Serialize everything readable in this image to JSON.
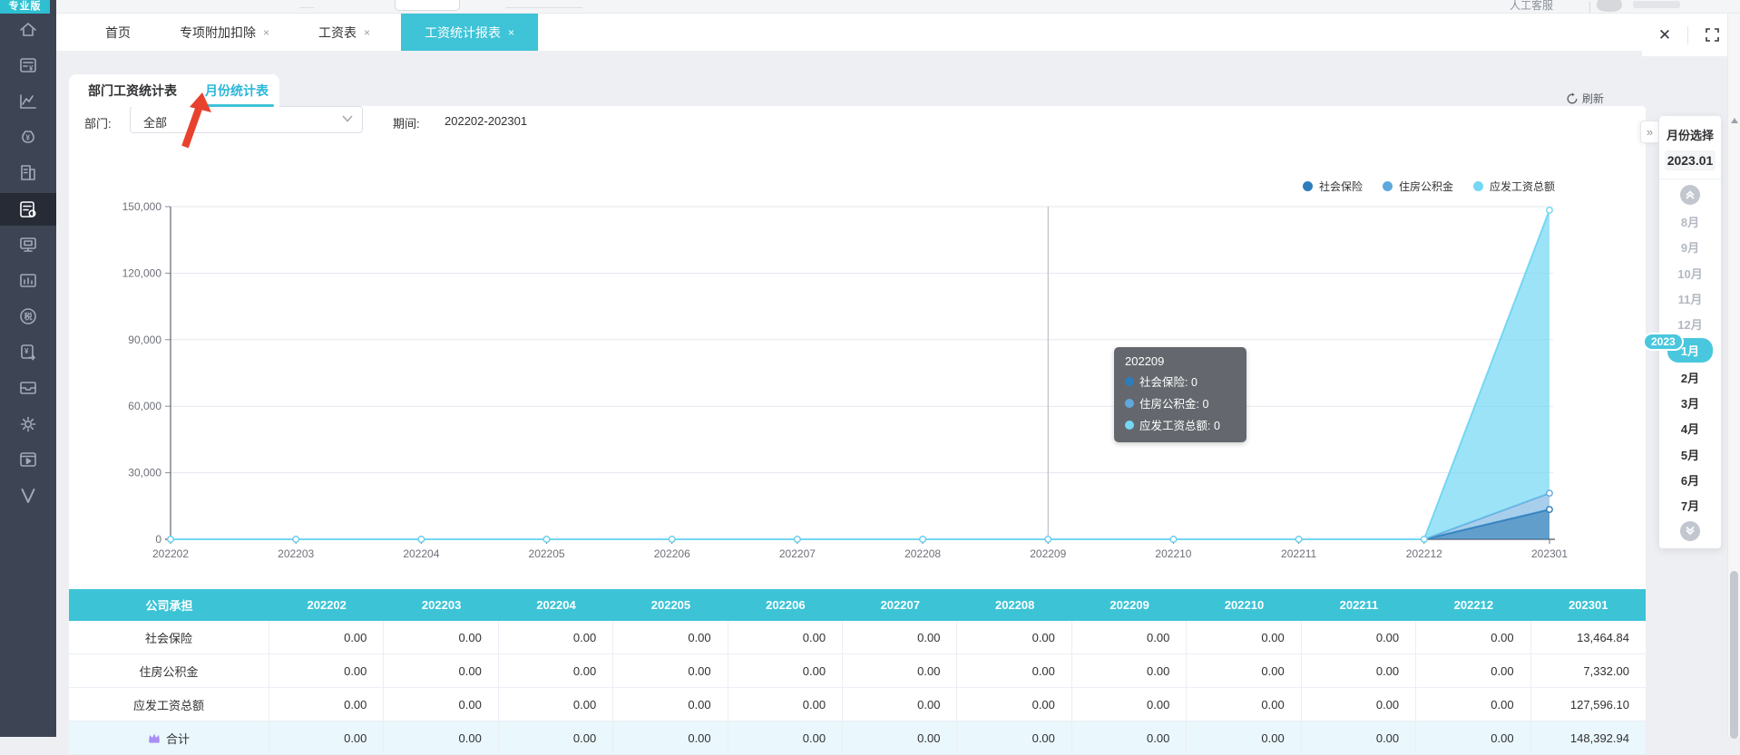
{
  "topbar": {
    "assistant_label": "人工客服"
  },
  "sidebar": {
    "edition_badge": "专业版",
    "items": [
      {
        "name": "home",
        "active": false
      },
      {
        "name": "voucher",
        "active": false
      },
      {
        "name": "reports",
        "active": false
      },
      {
        "name": "funds",
        "active": false
      },
      {
        "name": "invoices",
        "active": false
      },
      {
        "name": "salary-reports",
        "active": true
      },
      {
        "name": "cashier",
        "active": false
      },
      {
        "name": "assets",
        "active": false
      },
      {
        "name": "tax",
        "active": false
      },
      {
        "name": "checkout",
        "active": false
      },
      {
        "name": "archive",
        "active": false
      },
      {
        "name": "settings",
        "active": false
      },
      {
        "name": "tutorial-video",
        "active": false
      },
      {
        "name": "v-logo",
        "active": false
      }
    ]
  },
  "tabs": [
    {
      "label": "首页",
      "closable": false,
      "active": false
    },
    {
      "label": "专项附加扣除",
      "closable": true,
      "active": false
    },
    {
      "label": "工资表",
      "closable": true,
      "active": false
    },
    {
      "label": "工资统计报表",
      "closable": true,
      "active": true
    }
  ],
  "icons": {
    "close": "✕",
    "collapse": "»",
    "tab_close": "×"
  },
  "subtabs": [
    {
      "label": "部门工资统计表",
      "active": false
    },
    {
      "label": "月份统计表",
      "active": true
    }
  ],
  "toolbar": {
    "refresh_label": "刷新"
  },
  "filters": {
    "department_label": "部门:",
    "department_value": "全部",
    "period_label": "期间:",
    "period_value": "202202-202301"
  },
  "chart_data": {
    "type": "area",
    "stacked": true,
    "x": [
      "202202",
      "202203",
      "202204",
      "202205",
      "202206",
      "202207",
      "202208",
      "202209",
      "202210",
      "202211",
      "202212",
      "202301"
    ],
    "series": [
      {
        "name": "社会保险",
        "color": "#2d7dbb",
        "fill_opacity": 0.75,
        "values": [
          0,
          0,
          0,
          0,
          0,
          0,
          0,
          0,
          0,
          0,
          0,
          13464.84
        ]
      },
      {
        "name": "住房公积金",
        "color": "#5fa8dc",
        "fill_opacity": 0.55,
        "values": [
          0,
          0,
          0,
          0,
          0,
          0,
          0,
          0,
          0,
          0,
          0,
          7332.0
        ]
      },
      {
        "name": "应发工资总额",
        "color": "#74d7f3",
        "fill_opacity": 0.7,
        "values": [
          0,
          0,
          0,
          0,
          0,
          0,
          0,
          0,
          0,
          0,
          0,
          127596.1
        ]
      }
    ],
    "ylim": [
      0,
      150000
    ],
    "ytick_values": [
      0,
      30000,
      60000,
      90000,
      120000,
      150000
    ],
    "yticks": [
      "0",
      "30,000",
      "60,000",
      "90,000",
      "120,000",
      "150,000"
    ],
    "legend_position": "top-right",
    "grid": true,
    "hover_index": 7
  },
  "tooltip": {
    "title": "202209",
    "items": [
      {
        "label": "社会保险",
        "value": "0"
      },
      {
        "label": "住房公积金",
        "value": "0"
      },
      {
        "label": "应发工资总额",
        "value": "0"
      }
    ]
  },
  "month_panel": {
    "title": "月份选择",
    "current": "2023.01",
    "year_badge": "2023",
    "months": [
      {
        "label": "8月",
        "state": "muted"
      },
      {
        "label": "9月",
        "state": "muted"
      },
      {
        "label": "10月",
        "state": "muted"
      },
      {
        "label": "11月",
        "state": "muted"
      },
      {
        "label": "12月",
        "state": "muted"
      },
      {
        "label": "1月",
        "state": "selected"
      },
      {
        "label": "2月",
        "state": "normal"
      },
      {
        "label": "3月",
        "state": "normal"
      },
      {
        "label": "4月",
        "state": "normal"
      },
      {
        "label": "5月",
        "state": "normal"
      },
      {
        "label": "6月",
        "state": "normal"
      },
      {
        "label": "7月",
        "state": "normal"
      }
    ]
  },
  "table": {
    "headers": [
      "公司承担",
      "202202",
      "202203",
      "202204",
      "202205",
      "202206",
      "202207",
      "202208",
      "202209",
      "202210",
      "202211",
      "202212",
      "202301"
    ],
    "rows": [
      {
        "label": "社会保险",
        "icon": null,
        "highlight": false,
        "values": [
          "0.00",
          "0.00",
          "0.00",
          "0.00",
          "0.00",
          "0.00",
          "0.00",
          "0.00",
          "0.00",
          "0.00",
          "0.00",
          "13,464.84"
        ]
      },
      {
        "label": "住房公积金",
        "icon": null,
        "highlight": false,
        "values": [
          "0.00",
          "0.00",
          "0.00",
          "0.00",
          "0.00",
          "0.00",
          "0.00",
          "0.00",
          "0.00",
          "0.00",
          "0.00",
          "7,332.00"
        ]
      },
      {
        "label": "应发工资总额",
        "icon": null,
        "highlight": false,
        "values": [
          "0.00",
          "0.00",
          "0.00",
          "0.00",
          "0.00",
          "0.00",
          "0.00",
          "0.00",
          "0.00",
          "0.00",
          "0.00",
          "127,596.10"
        ]
      },
      {
        "label": "合计",
        "icon": "crown-icon",
        "highlight": true,
        "values": [
          "0.00",
          "0.00",
          "0.00",
          "0.00",
          "0.00",
          "0.00",
          "0.00",
          "0.00",
          "0.00",
          "0.00",
          "0.00",
          "148,392.94"
        ]
      }
    ]
  },
  "colors": {
    "primary": "#3ec3d7",
    "table_header": "#3cc3d6",
    "sidebar_bg": "#3d4454",
    "sidebar_active_bg": "#262b36",
    "series_shebao": "#2d7dbb",
    "series_gongjijin": "#5fa8dc",
    "series_yingfa": "#74d7f3",
    "annotation_arrow": "#e8422e"
  }
}
